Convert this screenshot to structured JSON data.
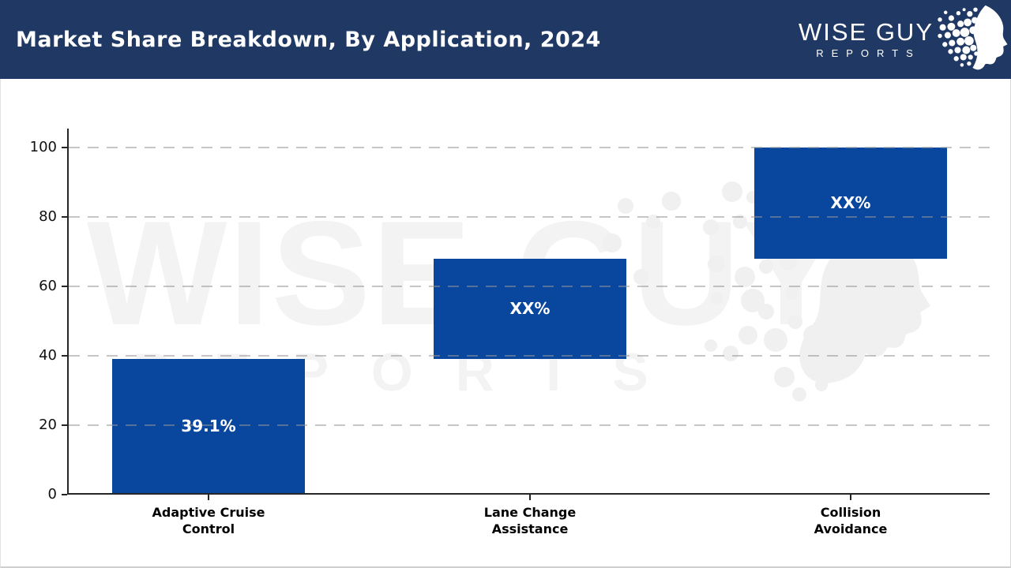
{
  "header": {
    "title": "Market Share Breakdown, By Application, 2024",
    "logo": {
      "line1": "WISE GUY",
      "line2": "REPORTS",
      "face_icon": "dotted-head-profile"
    }
  },
  "watermark": {
    "line1": "WISE GUY",
    "line2": "REPORTS"
  },
  "colors": {
    "header_bg": "#1f3864",
    "header_text": "#ffffff",
    "bar": "#09469e",
    "bar_label": "#ffffff",
    "axis": "#262626",
    "grid": "#d0d0d0",
    "watermark": "#f3f3f3"
  },
  "chart_data": {
    "type": "bar",
    "subtype": "waterfall",
    "title": "Market Share Breakdown, By Application, 2024",
    "xlabel": "",
    "ylabel": "",
    "ylim": [
      0,
      105
    ],
    "yticks": [
      0,
      20,
      40,
      60,
      80,
      100
    ],
    "grid": "horizontal dashed, drawn over bars",
    "legend": "none",
    "categories": [
      "Adaptive Cruise\nControl",
      "Lane Change\nAssistance",
      "Collision\nAvoidance"
    ],
    "segments": [
      {
        "category": "Adaptive Cruise Control",
        "start": 0,
        "end": 39.1,
        "value_label": "39.1%"
      },
      {
        "category": "Lane Change Assistance",
        "start": 39.1,
        "end": 68,
        "value_label": "XX%"
      },
      {
        "category": "Collision Avoidance",
        "start": 68,
        "end": 100,
        "value_label": "XX%"
      }
    ]
  }
}
